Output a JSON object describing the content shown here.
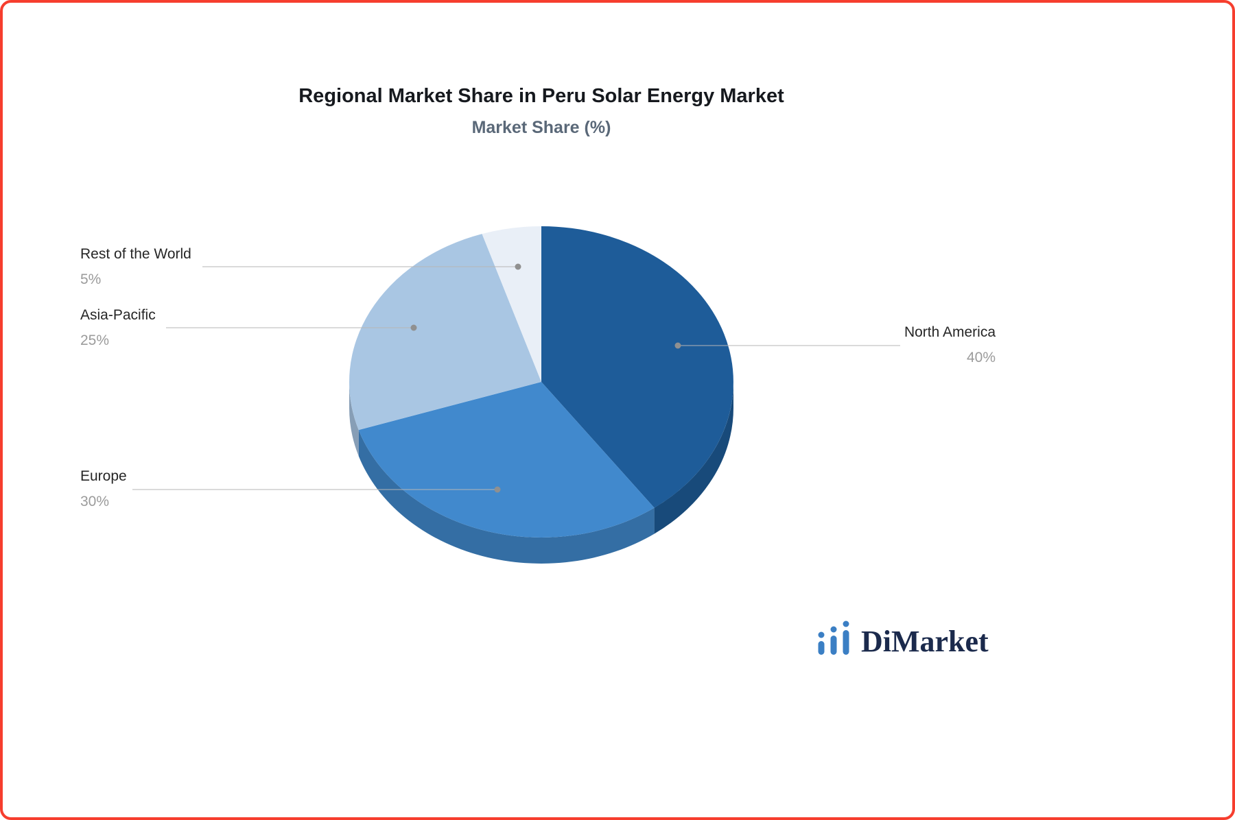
{
  "page": {
    "background": "#ffffff",
    "frame_border_color": "#f63e2e"
  },
  "chart_data": {
    "type": "pie",
    "style": "3d-pie",
    "title": "Regional Market Share in Peru Solar Energy Market",
    "subtitle": "Market Share (%)",
    "unit": "%",
    "labels": [
      "North America",
      "Europe",
      "Asia-Pacific",
      "Rest of the World"
    ],
    "values": [
      40,
      30,
      25,
      5
    ],
    "value_labels": [
      "40%",
      "30%",
      "25%",
      "5%"
    ],
    "colors": [
      "#1e5c99",
      "#4189cd",
      "#a9c6e3",
      "#e9eff7"
    ],
    "legend": "callout-labels",
    "legend_position": "around-pie",
    "grid": "off"
  },
  "logo": {
    "text": "DiMarket",
    "icon": "bar-chart-logo-icon",
    "text_color": "#1b2a4c",
    "icon_color": "#3b7fc4"
  }
}
